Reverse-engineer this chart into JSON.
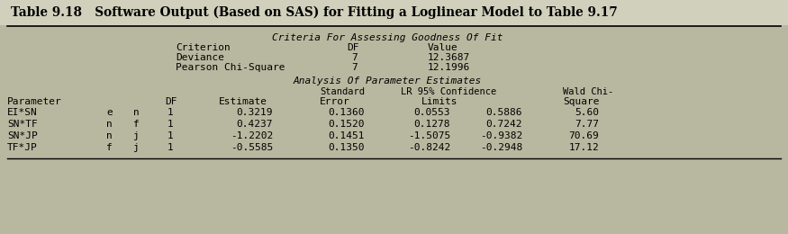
{
  "title": "Table 9.18   Software Output (Based on SAS) for Fitting a Loglinear Model to Table 9.17",
  "bg_color": "#b8b8a0",
  "title_bg": "#d0d0bc",
  "section1_title": "Criteria For Assessing Goodness Of Fit",
  "section1_headers": [
    "Criterion",
    "DF",
    "Value"
  ],
  "section1_rows": [
    [
      "Deviance",
      "7",
      "12.3687"
    ],
    [
      "Pearson Chi-Square",
      "7",
      "12.1996"
    ]
  ],
  "section2_title": "Analysis Of Parameter Estimates",
  "section2_rows": [
    [
      "EI*SN",
      "e",
      "n",
      "1",
      "0.3219",
      "0.1360",
      "0.0553",
      "0.5886",
      "5.60"
    ],
    [
      "SN*TF",
      "n",
      "f",
      "1",
      "0.4237",
      "0.1520",
      "0.1278",
      "0.7242",
      "7.77"
    ],
    [
      "SN*JP",
      "n",
      "j",
      "1",
      "-1.2202",
      "0.1451",
      "-1.5075",
      "-0.9382",
      "70.69"
    ],
    [
      "TF*JP",
      "f",
      "j",
      "1",
      "-0.5585",
      "0.1350",
      "-0.8242",
      "-0.2948",
      "17.12"
    ]
  ],
  "mono_fs": 8.0,
  "mono_fs_sm": 7.5
}
